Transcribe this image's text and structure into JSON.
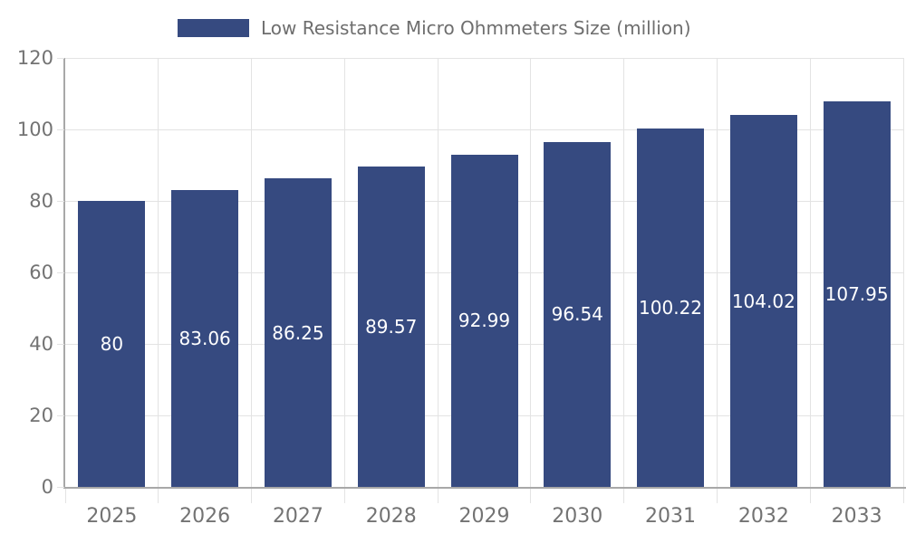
{
  "legend": {
    "label": "Low Resistance Micro Ohmmeters Size (million)"
  },
  "chart_data": {
    "type": "bar",
    "title": "Low Resistance Micro Ohmmeters Size (million)",
    "categories": [
      "2025",
      "2026",
      "2027",
      "2028",
      "2029",
      "2030",
      "2031",
      "2032",
      "2033"
    ],
    "values": [
      80,
      83.06,
      86.25,
      89.57,
      92.99,
      96.54,
      100.22,
      104.02,
      107.95
    ],
    "value_labels": [
      "80",
      "83.06",
      "86.25",
      "89.57",
      "92.99",
      "96.54",
      "100.22",
      "104.02",
      "107.95"
    ],
    "xlabel": "",
    "ylabel": "",
    "ylim": [
      0,
      120
    ],
    "yticks": [
      0,
      20,
      40,
      60,
      80,
      100,
      120
    ],
    "grid": true,
    "legend_position": "top-center",
    "colors": {
      "bar": "#364A80",
      "grid": "#e3e3e3",
      "axis": "#a8a8a8",
      "axis_text": "#737373",
      "legend_text": "#6e6e6e",
      "bar_label": "#ffffff",
      "background": "#ffffff"
    }
  }
}
